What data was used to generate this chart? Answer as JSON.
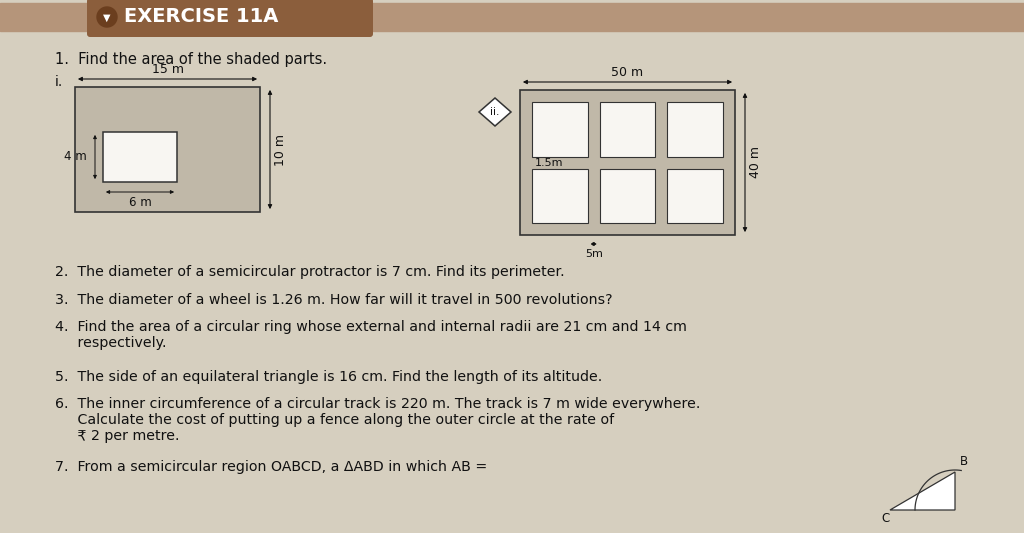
{
  "page_bg": "#d6cfbf",
  "header_bar_color": "#b5957a",
  "header_pill_color": "#8b5e3c",
  "header_text": "EXERCISE 11A",
  "title1": "1.  Find the area of the shaded parts.",
  "label_i": "i.",
  "label_ii": "ii.",
  "dim_15m": "15 m",
  "dim_10m": "10 m",
  "dim_4m": "4 m",
  "dim_6m": "6 m",
  "dim_50m": "50 m",
  "dim_40m": "40 m",
  "dim_15m2": "1.5m",
  "dim_5m": "5m",
  "text2": "2.  The diameter of a semicircular protractor is 7 cm. Find its perimeter.",
  "text3": "3.  The diameter of a wheel is 1.26 m. How far will it travel in 500 revolutions?",
  "text4": "4.  Find the area of a circular ring whose external and internal radii are 21 cm and 14 cm\n     respectively.",
  "text5": "5.  The side of an equilateral triangle is 16 cm. Find the length of its altitude.",
  "text6": "6.  The inner circumference of a circular track is 220 m. The track is 7 m wide everywhere.\n     Calculate the cost of putting up a fence along the outer circle at the rate of\n     ₹ 2 per metre.",
  "text7": "7.  From a semicircular region OABCD, a ΔABD in which AB =",
  "shaded_color": "#c0b8a8",
  "line_color": "#333333",
  "white_color": "#f8f6f2",
  "inner_fill": "#e8e4da"
}
